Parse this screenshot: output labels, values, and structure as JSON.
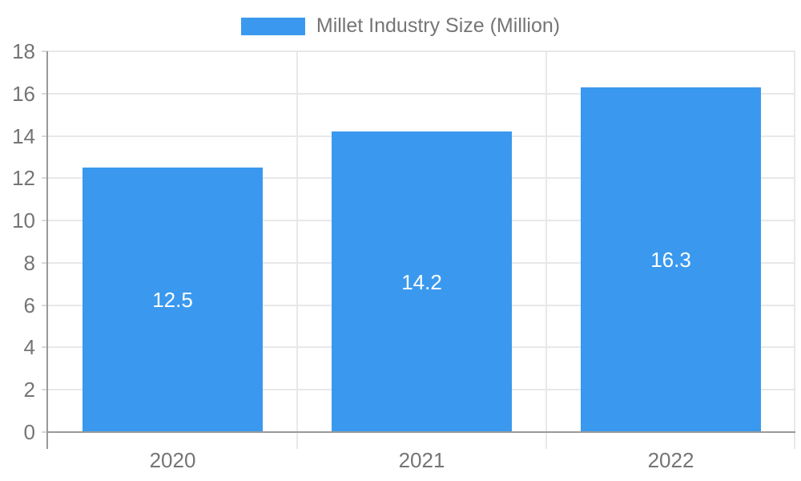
{
  "chart_data": {
    "type": "bar",
    "title": "",
    "legend": {
      "label": "Millet Industry Size (Million)",
      "position": "top-center"
    },
    "categories": [
      "2020",
      "2021",
      "2022"
    ],
    "series": [
      {
        "name": "Millet Industry Size (Million)",
        "values": [
          12.5,
          14.2,
          16.3
        ]
      }
    ],
    "data_labels": [
      "12.5",
      "14.2",
      "16.3"
    ],
    "xlabel": "",
    "ylabel": "",
    "ylim": [
      0,
      18
    ],
    "yticks": [
      0,
      2,
      4,
      6,
      8,
      10,
      12,
      14,
      16,
      18
    ],
    "grid": true,
    "legend_position": "top",
    "colors": {
      "bar": "#3A99EE",
      "axis_line": "#999999",
      "gridline": "#E8E8E8",
      "tick": "#D9D9D9",
      "tick_label": "#757575",
      "data_label": "#FFFFFF",
      "background": "#FFFFFF"
    }
  }
}
